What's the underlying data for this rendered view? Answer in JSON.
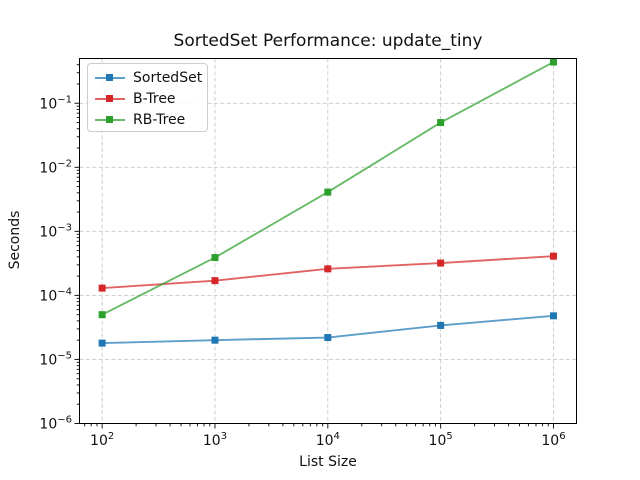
{
  "chart_data": {
    "type": "line",
    "title": "SortedSet Performance: update_tiny",
    "xlabel": "List Size",
    "ylabel": "Seconds",
    "x_scale": "log",
    "y_scale": "log",
    "grid": "major-dashed",
    "legend_position": "upper-left",
    "x": [
      100,
      1000,
      10000,
      100000,
      1000000
    ],
    "xlim": [
      63,
      1600000
    ],
    "ylim": [
      1e-06,
      0.5
    ],
    "x_tick_exponents": [
      2,
      3,
      4,
      5,
      6
    ],
    "y_tick_exponents": [
      -6,
      -5,
      -4,
      -3,
      -2,
      -1
    ],
    "x_tick_labels": [
      "10^2",
      "10^3",
      "10^4",
      "10^5",
      "10^6"
    ],
    "y_tick_labels": [
      "10^-6",
      "10^-5",
      "10^-4",
      "10^-3",
      "10^-2",
      "10^-1"
    ],
    "series": [
      {
        "name": "SortedSet",
        "color": "#1f77b4",
        "values": [
          1.8e-05,
          2e-05,
          2.2e-05,
          3.4e-05,
          4.8e-05
        ]
      },
      {
        "name": "B-Tree",
        "color": "#d62728",
        "values": [
          0.00013,
          0.00017,
          0.00026,
          0.00032,
          0.00041
        ]
      },
      {
        "name": "RB-Tree",
        "color": "#2ca02c",
        "values": [
          5e-05,
          0.00039,
          0.0041,
          0.05,
          0.44
        ]
      }
    ]
  }
}
